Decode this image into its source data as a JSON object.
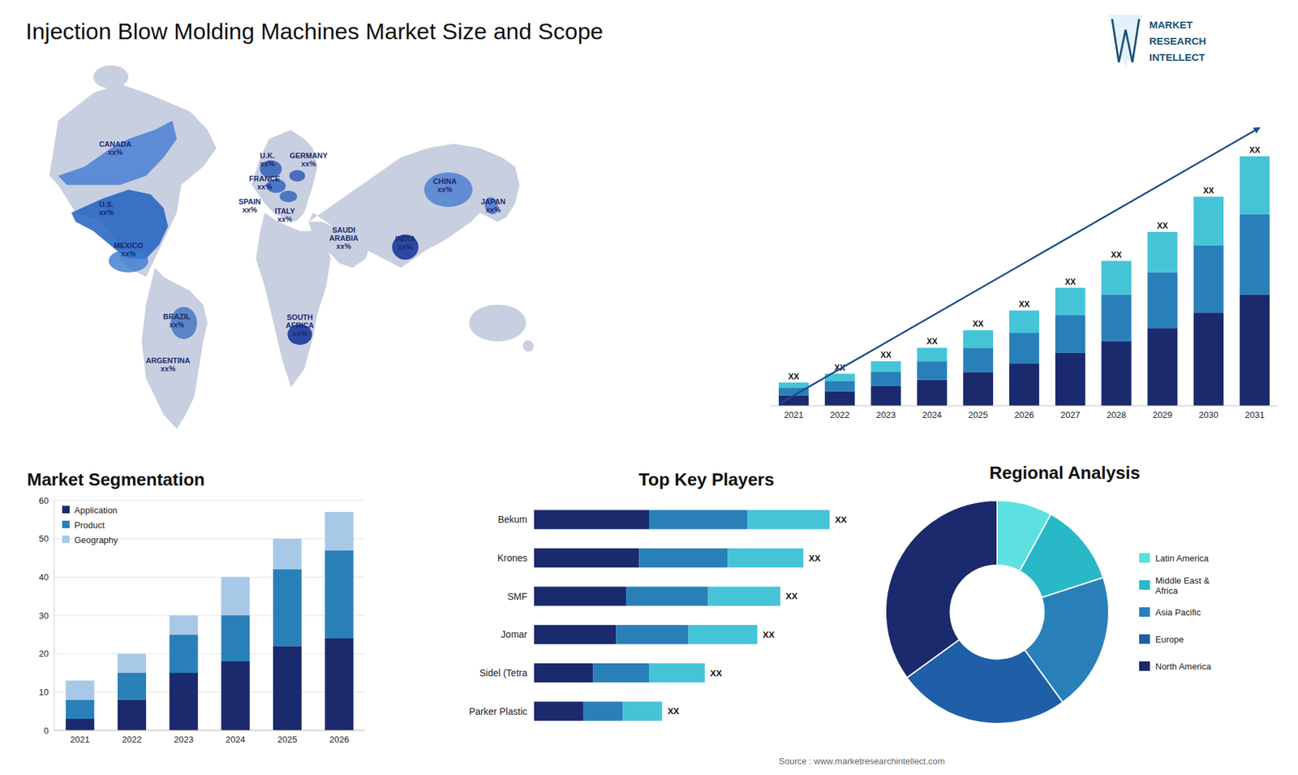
{
  "title": "Injection Blow Molding Machines Market Size and Scope",
  "source": "Source : www.marketresearchintellect.com",
  "logo": [
    "MARKET",
    "RESEARCH",
    "INTELLECT"
  ],
  "chart_data": [
    {
      "type": "map",
      "annotations": [
        "CANADA\nxx%",
        "U.S.\nxx%",
        "MEXICO\nxx%",
        "BRAZIL\nxx%",
        "ARGENTINA\nxx%",
        "U.K.\nxx%",
        "FRANCE\nxx%",
        "SPAIN\nxx%",
        "GERMANY\nxx%",
        "ITALY\nxx%",
        "SAUDI\nARABIA\nxx%",
        "SOUTH\nAFRICA\nxx%",
        "CHINA\nxx%",
        "INDIA\nxx%",
        "JAPAN\nxx%"
      ]
    },
    {
      "type": "bar",
      "stacked": true,
      "tick_labels": "x",
      "categories": [
        "2021",
        "2022",
        "2023",
        "2024",
        "2025",
        "2026",
        "2027",
        "2028",
        "2029",
        "2030",
        "2031"
      ],
      "ylim": [
        0,
        58.804
      ],
      "series": [
        {
          "color": "#1a2a6c",
          "values": [
            2.0,
            2.8,
            3.8,
            5.0,
            6.5,
            8.2,
            10.2,
            12.5,
            15.0,
            18.0,
            21.5
          ]
        },
        {
          "color": "#2980b9",
          "values": [
            1.5,
            2.0,
            2.8,
            3.6,
            4.7,
            5.9,
            7.3,
            9.0,
            10.8,
            13.0,
            15.5
          ]
        },
        {
          "color": "#45c4d8",
          "values": [
            1.0,
            1.4,
            2.0,
            2.6,
            3.4,
            4.3,
            5.3,
            6.5,
            7.8,
            9.4,
            11.2
          ],
          "value_labels": [
            "XX",
            "XX",
            "XX",
            "XX",
            "XX",
            "XX",
            "XX",
            "XX",
            "XX",
            "XX",
            "XX"
          ]
        }
      ]
    },
    {
      "type": "bar",
      "title": "Market Segmentation",
      "stacked": true,
      "grid": true,
      "legend": "upper left",
      "categories": [
        "2021",
        "2022",
        "2023",
        "2024",
        "2025",
        "2026"
      ],
      "ylim": [
        0,
        60
      ],
      "yticks": [
        0,
        10,
        20,
        30,
        40,
        50,
        60
      ],
      "series": [
        {
          "name": "Application",
          "color": "#1a2a6c",
          "values": [
            3,
            8,
            15,
            18,
            22,
            24
          ]
        },
        {
          "name": "Product",
          "color": "#2980b9",
          "values": [
            5,
            7,
            10,
            12,
            20,
            23
          ]
        },
        {
          "name": "Geography",
          "color": "#a8c8e8",
          "values": [
            5,
            5,
            5,
            10,
            8,
            10
          ]
        }
      ]
    },
    {
      "type": "bar",
      "title": "Top Key Players",
      "orientation": "horizontal",
      "stacked": true,
      "tick_labels": "y",
      "categories": [
        "Bekum",
        "Krones",
        "SMF",
        "Jomar",
        "Sidel (Tetra",
        "Parker Plastic"
      ],
      "xlim": [
        0,
        105
      ],
      "series": [
        {
          "color": "#1a2a6c",
          "values": [
            35,
            32,
            28,
            25,
            18,
            15
          ]
        },
        {
          "color": "#2980b9",
          "values": [
            30,
            27,
            25,
            22,
            17,
            12
          ]
        },
        {
          "color": "#45c4d8",
          "values": [
            25,
            23,
            22,
            21,
            17,
            12
          ],
          "value_labels": [
            "XX",
            "XX",
            "XX",
            "XX",
            "XX",
            "XX"
          ]
        }
      ]
    },
    {
      "type": "pie",
      "title": "Regional Analysis",
      "legend": "right",
      "labels": [
        "Latin America",
        "Middle East &\nAfrica",
        "Asia Pacific",
        "Europe",
        "North America"
      ],
      "values": [
        8,
        12,
        20,
        25,
        35
      ],
      "colors": [
        "#5ce0e0",
        "#29b8c8",
        "#2980b9",
        "#1f5fa8",
        "#1a2a6c"
      ]
    }
  ]
}
